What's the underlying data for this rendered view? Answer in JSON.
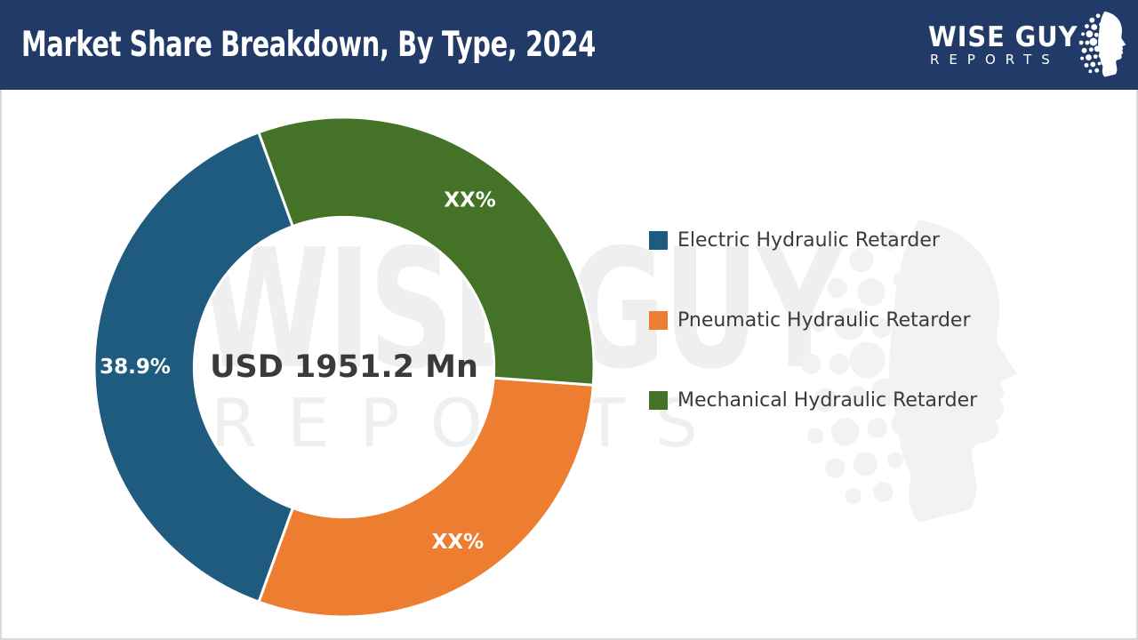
{
  "header": {
    "title": "Market Share Breakdown, By Type, 2024",
    "logo": {
      "line1": "WISE GUY",
      "line2": "REPORTS"
    }
  },
  "watermark": {
    "line1": "WISE GUY",
    "line2": "REPORTS"
  },
  "chart_data": {
    "type": "pie",
    "subtype": "donut",
    "title": "Market Share Breakdown, By Type, 2024",
    "center_label": "USD 1951.2 Mn",
    "start_angle_deg": 110,
    "direction": "counterclockwise",
    "inner_radius_ratio": 0.6,
    "legend_position": "right",
    "segments": [
      {
        "name": "Electric Hydraulic Retarder",
        "value_pct": 38.9,
        "label": "38.9%",
        "color": "#1F5A7F"
      },
      {
        "name": "Pneumatic Hydraulic Retarder",
        "value_pct": 29.4,
        "label": "XX%",
        "color": "#ED7D31"
      },
      {
        "name": "Mechanical Hydraulic Retarder",
        "value_pct": 31.7,
        "label": "XX%",
        "color": "#447227"
      }
    ]
  },
  "colors": {
    "header_bg": "#223A67",
    "title_text": "#FFFFFF",
    "body_text": "#3A3A3A",
    "watermark": "#EFEFEF",
    "frame_border": "#D9D9D9",
    "segment_divider": "#FFFFFF"
  }
}
